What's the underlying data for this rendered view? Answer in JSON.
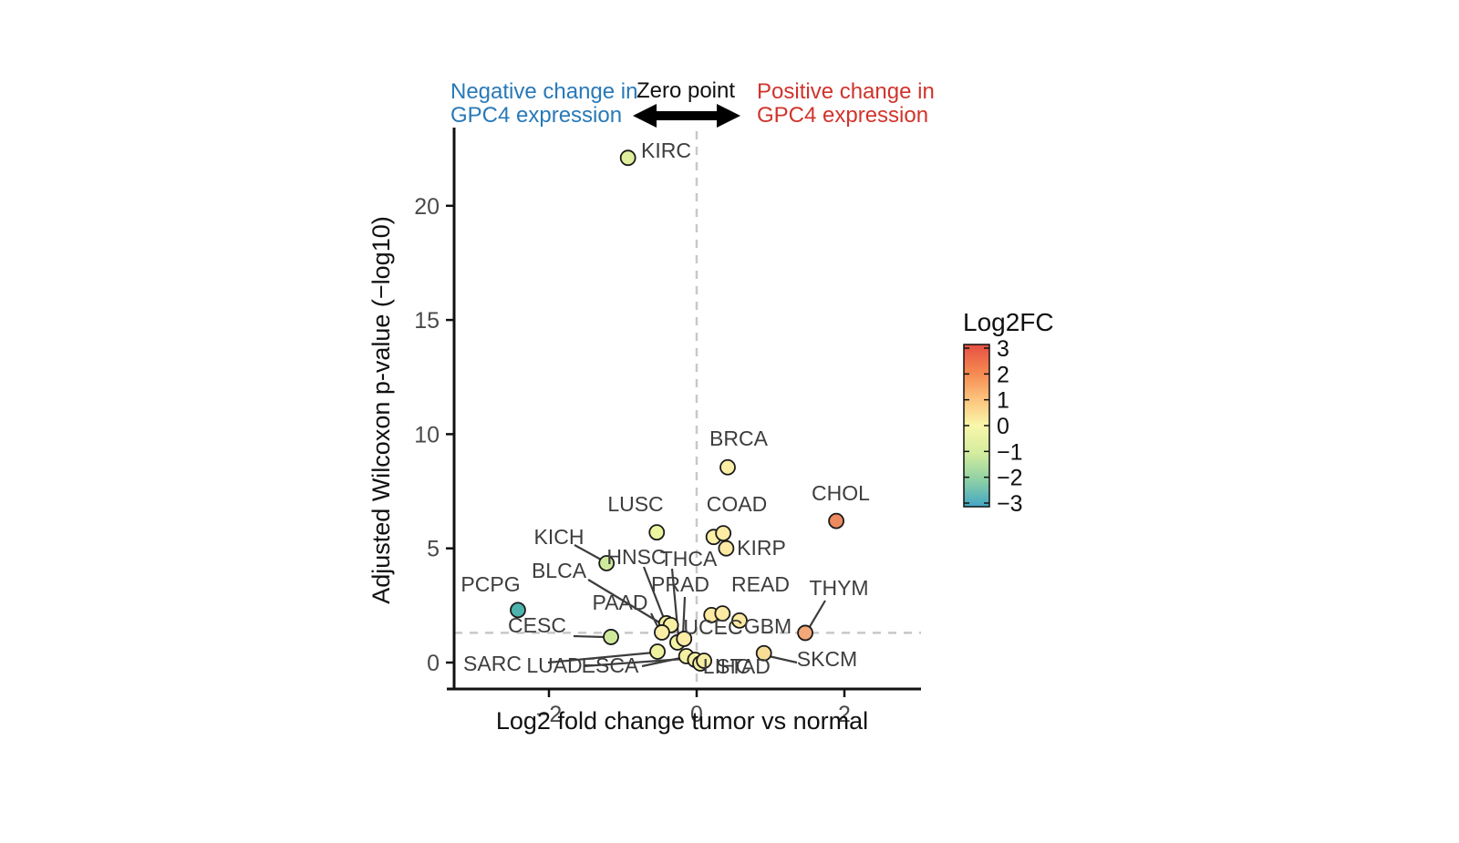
{
  "chart_data": {
    "type": "scatter",
    "xlabel": "Log2 fold change tumor vs normal",
    "ylabel": "Adjusted Wilcoxon p-value (−log10)",
    "xlim": [
      -3.3,
      3.05
    ],
    "ylim": [
      -1.2,
      23.4
    ],
    "x_ticks": [
      -2,
      0,
      2
    ],
    "y_ticks": [
      0,
      5,
      10,
      15,
      20
    ],
    "grid": false,
    "reference_lines": {
      "vertical_x": 0,
      "horizontal_y": 1.3,
      "style": "dashed",
      "color": "#c8c8c8"
    },
    "annotations": {
      "negative": {
        "line1": "Negative change in",
        "line2": "GPC4 expression",
        "color": "#2879b8"
      },
      "zero": {
        "text": "Zero point",
        "color": "#111111"
      },
      "positive": {
        "line1": "Positive change in",
        "line2": "GPC4 expression",
        "color": "#d0342c"
      }
    },
    "legend": {
      "title": "Log2FC",
      "ticks": [
        3,
        2,
        1,
        0,
        -1,
        -2,
        -3
      ],
      "gradient_top_to_bottom": [
        "#e64f43",
        "#f48750",
        "#fdc27b",
        "#f8f7ab",
        "#d5ec9e",
        "#8fd1a4",
        "#42a6c6"
      ],
      "position": "right"
    },
    "points": [
      {
        "label": "KIRC",
        "x": -0.93,
        "y": 22.1,
        "color": "#e0ef9d"
      },
      {
        "label": "BRCA",
        "x": 0.42,
        "y": 8.55,
        "color": "#fceea4"
      },
      {
        "label": "CHOL",
        "x": 1.89,
        "y": 6.2,
        "color": "#ed8a5f"
      },
      {
        "label": "LUSC",
        "x": -0.54,
        "y": 5.7,
        "color": "#ecf4a0"
      },
      {
        "label": "COAD",
        "x": 0.23,
        "y": 5.5,
        "color": "#fcefa8"
      },
      {
        "label": "",
        "x": 0.36,
        "y": 5.66,
        "color": "#fceca4"
      },
      {
        "label": "KIRP",
        "x": 0.4,
        "y": 5.0,
        "color": "#fbe9a4"
      },
      {
        "label": "KICH",
        "x": -1.22,
        "y": 4.35,
        "color": "#cfe99c"
      },
      {
        "label": "PCPG",
        "x": -2.42,
        "y": 2.3,
        "color": "#4fb3ad"
      },
      {
        "label": "CESC",
        "x": -1.16,
        "y": 1.12,
        "color": "#cfe99c"
      },
      {
        "label": "BLCA",
        "x": -0.41,
        "y": 1.72,
        "color": "#f4f0a2"
      },
      {
        "label": "HNSC",
        "x": -0.35,
        "y": 1.64,
        "color": "#f7f0a4"
      },
      {
        "label": "PAAD",
        "x": -0.47,
        "y": 1.32,
        "color": "#fdeea6"
      },
      {
        "label": "THCA",
        "x": -0.26,
        "y": 0.88,
        "color": "#f2f3a4"
      },
      {
        "label": "PRAD",
        "x": -0.17,
        "y": 1.04,
        "color": "#fbeca6"
      },
      {
        "label": "UCEC",
        "x": 0.2,
        "y": 2.08,
        "color": "#fdeaa0"
      },
      {
        "label": "GBM",
        "x": 0.35,
        "y": 2.15,
        "color": "#fdeaa2"
      },
      {
        "label": "READ",
        "x": 0.58,
        "y": 1.84,
        "color": "#fce8a0"
      },
      {
        "label": "THYM",
        "x": 1.47,
        "y": 1.3,
        "color": "#f2a878"
      },
      {
        "label": "SKCM",
        "x": 0.91,
        "y": 0.41,
        "color": "#f8dd96"
      },
      {
        "label": "SARC",
        "x": -0.53,
        "y": 0.48,
        "color": "#eef2a0"
      },
      {
        "label": "LUAD",
        "x": -0.14,
        "y": 0.28,
        "color": "#f4f0a2"
      },
      {
        "label": "ESCA",
        "x": -0.02,
        "y": 0.12,
        "color": "#f6efa2"
      },
      {
        "label": "LIHC",
        "x": 0.05,
        "y": -0.04,
        "color": "#f4eda2"
      },
      {
        "label": "STAD",
        "x": 0.1,
        "y": 0.08,
        "color": "#f5eea2"
      }
    ]
  }
}
